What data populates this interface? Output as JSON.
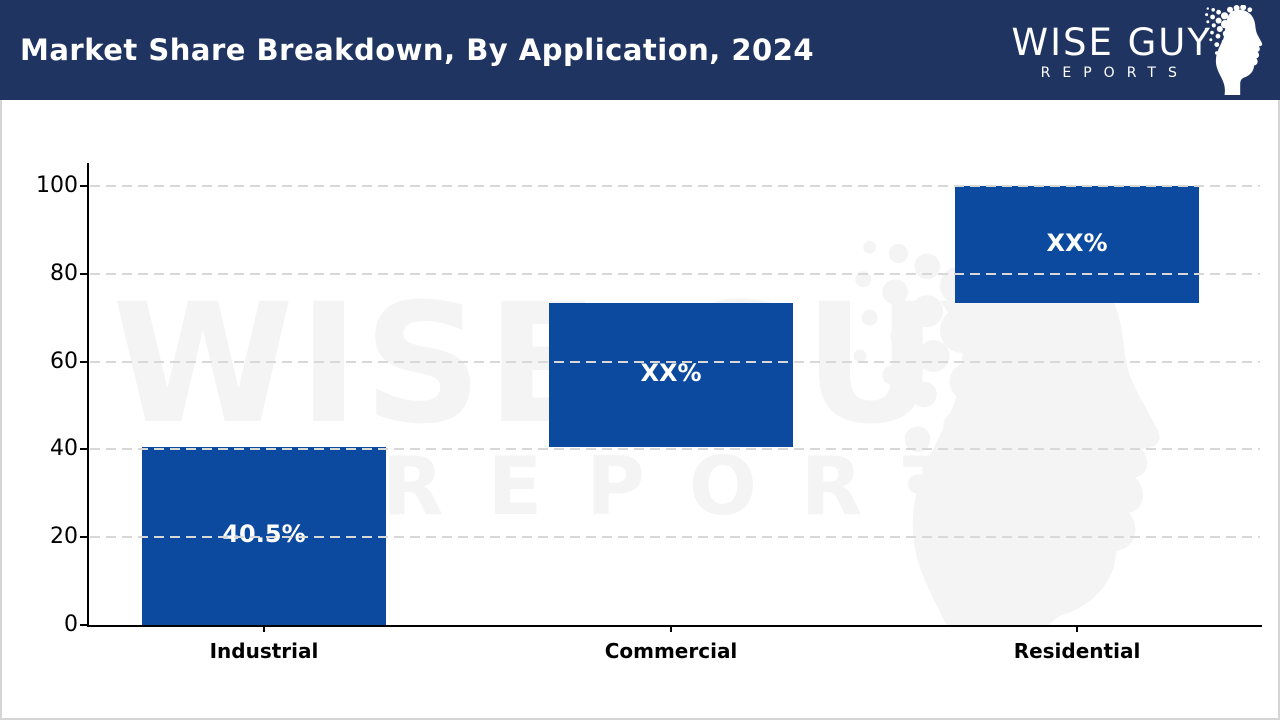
{
  "header": {
    "title": "Market Share Breakdown, By Application, 2024",
    "background": "#1f3461",
    "title_color": "#ffffff",
    "logo": {
      "line1": "WISE GUY",
      "line2": "REPORTS",
      "head_icon": "dotted-head-profile"
    }
  },
  "watermark": {
    "line1": "WISE GUY",
    "line2": "REPORTS",
    "color": "#f4f4f4"
  },
  "chart_data": {
    "type": "bar",
    "variant": "waterfall-stepped",
    "title": "Market Share Breakdown, By Application, 2024",
    "categories": [
      "Industrial",
      "Commercial",
      "Residential"
    ],
    "bars": [
      {
        "category": "Industrial",
        "start": 0,
        "end": 40.5,
        "value": 40.5,
        "label": "40.5%"
      },
      {
        "category": "Commercial",
        "start": 40.5,
        "end": 73.3,
        "value": 32.8,
        "label": "XX%"
      },
      {
        "category": "Residential",
        "start": 73.3,
        "end": 100,
        "value": 26.7,
        "label": "XX%"
      }
    ],
    "bar_color": "#0b4a9f",
    "bar_label_color": "#ffffff",
    "xlabel": "",
    "ylabel": "",
    "ylim": [
      0,
      100
    ],
    "yticks": [
      0,
      20,
      40,
      60,
      80,
      100
    ],
    "grid": "horizontal-dashed",
    "grid_color": "#d8d8d8",
    "legend": "none"
  }
}
